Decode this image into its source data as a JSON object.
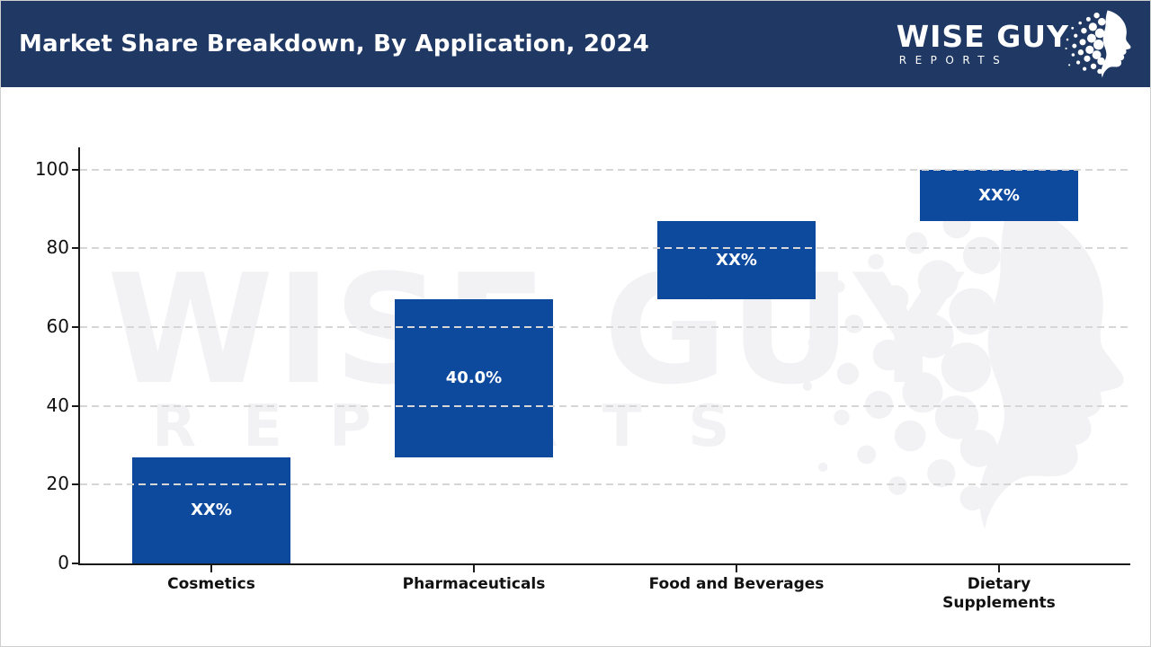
{
  "header": {
    "title": "Market Share Breakdown, By Application, 2024",
    "logo": {
      "brand": "WISE GUY",
      "sub": "REPORTS"
    }
  },
  "watermark": {
    "brand": "WISE GUY",
    "sub": "REPORTS"
  },
  "colors": {
    "header_bg": "#1f3864",
    "bar": "#0d4a9e",
    "gridline": "#d6d6d6",
    "axis": "#1a1a1a",
    "watermark": "#f2f2f4"
  },
  "chart_data": {
    "type": "bar",
    "subtype": "waterfall",
    "title": "Market Share Breakdown, By Application, 2024",
    "xlabel": "",
    "ylabel": "",
    "categories": [
      "Cosmetics",
      "Pharmaceuticals",
      "Food and Beverages",
      "Dietary\nSupplements"
    ],
    "values": [
      27,
      40,
      20,
      13
    ],
    "bars": [
      {
        "category": "Cosmetics",
        "label": "XX%",
        "start": 0,
        "end": 27
      },
      {
        "category": "Pharmaceuticals",
        "label": "40.0%",
        "start": 27,
        "end": 67
      },
      {
        "category": "Food and Beverages",
        "label": "XX%",
        "start": 67,
        "end": 87
      },
      {
        "category": "Dietary Supplements",
        "label": "XX%",
        "start": 87,
        "end": 100
      }
    ],
    "yticks": [
      0,
      20,
      40,
      60,
      80,
      100
    ],
    "ylim": [
      0,
      105
    ],
    "grid": "horizontal dashed, drawn above bars",
    "legend": "none",
    "bar_color": "#0d4a9e"
  }
}
